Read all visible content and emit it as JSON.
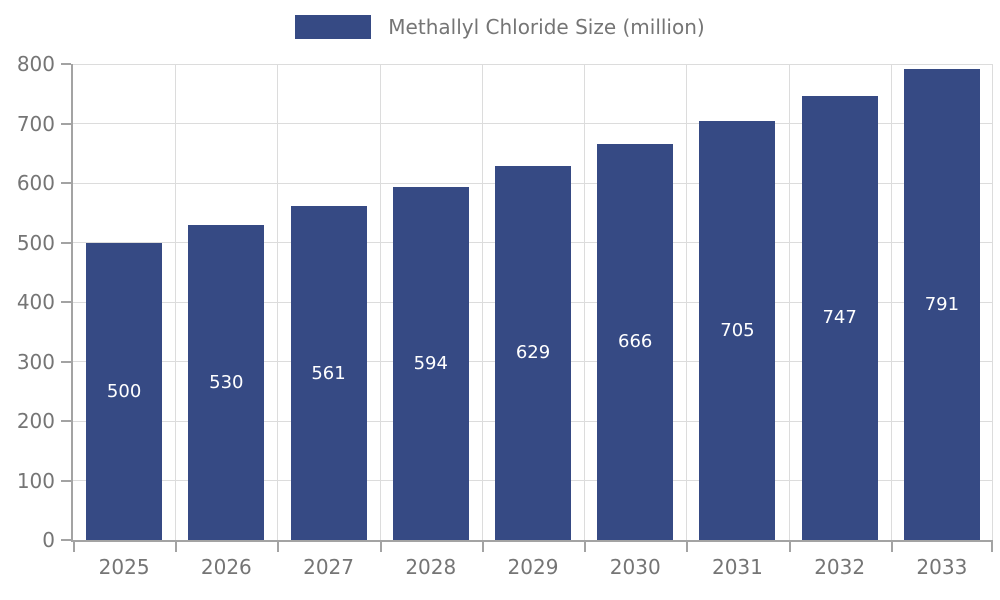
{
  "chart_data": {
    "type": "bar",
    "title": "",
    "legend": "Methallyl Chloride Size (million)",
    "legend_position": "top-center",
    "categories": [
      "2025",
      "2026",
      "2027",
      "2028",
      "2029",
      "2030",
      "2031",
      "2032",
      "2033"
    ],
    "values": [
      500,
      530,
      561,
      594,
      629,
      666,
      705,
      747,
      791
    ],
    "xlabel": "",
    "ylabel": "",
    "ylim": [
      0,
      800
    ],
    "ytick_step": 100,
    "yticks": [
      0,
      100,
      200,
      300,
      400,
      500,
      600,
      700,
      800
    ],
    "grid": true,
    "value_labels_shown": true
  },
  "colors": {
    "bar": "#364A84",
    "grid": "#DCDCDC",
    "axis": "#A3A3A3",
    "tick_text": "#757575",
    "legend_text": "#757575",
    "value_label": "#FFFFFF",
    "background": "#FFFFFF"
  }
}
